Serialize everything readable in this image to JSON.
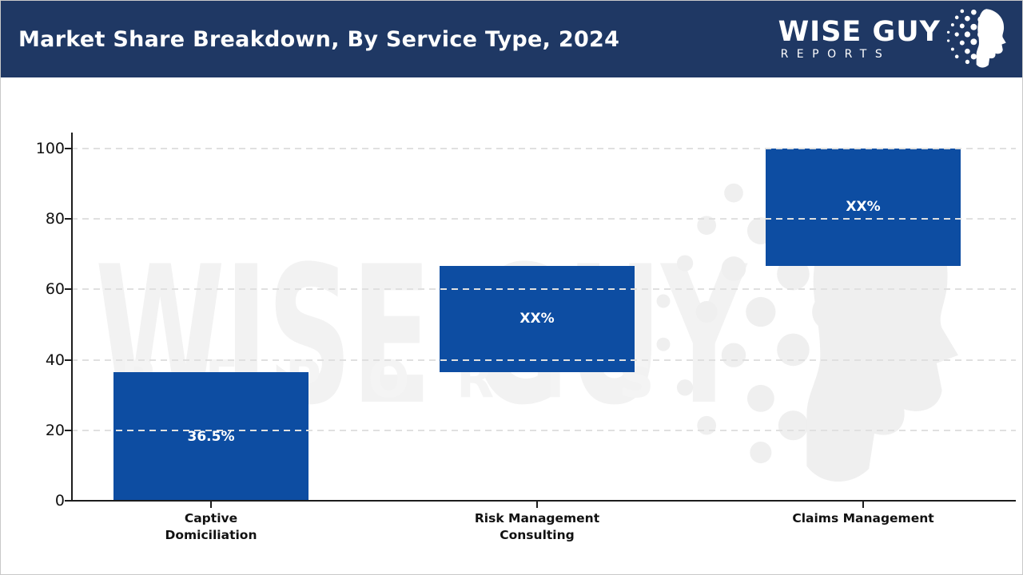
{
  "header": {
    "title": "Market Share Breakdown, By Service Type, 2024",
    "brand": {
      "line1": "WISE GUY",
      "line2": "REPORTS"
    }
  },
  "watermark": {
    "line1": "WISE GUY",
    "line2": "REPORTS"
  },
  "colors": {
    "header_background": "#1f3864",
    "bar": "#0d4da2",
    "bar_label": "#ffffff",
    "gridline": "#e0e0e0",
    "axis": "#1c1c1c",
    "watermark": "#f2f2f2"
  },
  "chart_data": {
    "type": "bar",
    "variant": "waterfall",
    "title": "Market Share Breakdown, By Service Type, 2024",
    "xlabel": "",
    "ylabel": "",
    "categories": [
      "Captive Domiciliation",
      "Risk Management Consulting",
      "Claims Management"
    ],
    "categories_lines": [
      [
        "Captive",
        "Domiciliation"
      ],
      [
        "Risk Management",
        "Consulting"
      ],
      [
        "Claims Management"
      ]
    ],
    "segments": [
      {
        "category": "Captive Domiciliation",
        "start": 0,
        "end": 36.5,
        "label": "36.5%"
      },
      {
        "category": "Risk Management Consulting",
        "start": 36.5,
        "end": 66.7,
        "label": "XX%"
      },
      {
        "category": "Claims Management",
        "start": 66.7,
        "end": 100,
        "label": "XX%"
      }
    ],
    "yticks": [
      0,
      20,
      40,
      60,
      80,
      100
    ],
    "ylim": [
      0,
      105
    ],
    "grid": "horizontal-dashed",
    "legend": "none"
  }
}
